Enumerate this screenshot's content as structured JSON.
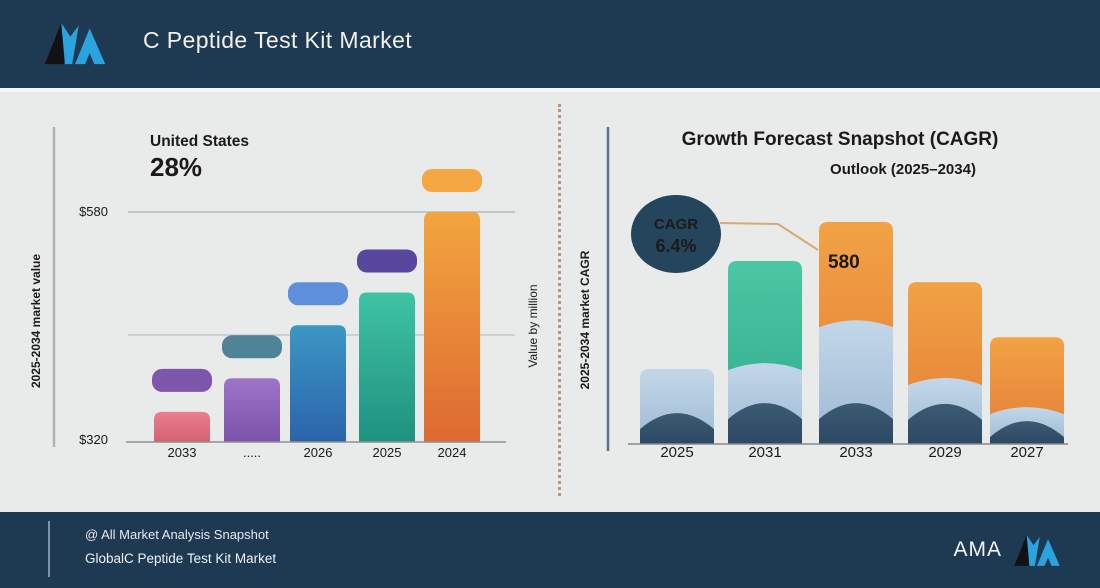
{
  "header": {
    "title": "C Peptide Test Kit Market",
    "logo": "AMA"
  },
  "footer": {
    "line1": "@ All Market Analysis Snapshot",
    "line2": "GlobalC Peptide Test Kit Market",
    "brand": "AMA"
  },
  "colors": {
    "header_bg": "#1d3a52",
    "panel_bg": "#e9eaea",
    "accent_red": "#bf1e2c",
    "divider_dotted": "#b5846c",
    "bubble_fill": "#24455c",
    "connector": "#d7a87a",
    "logo_blue": "#2aa3de",
    "logo_black": "#101215"
  },
  "chart_data": [
    {
      "id": "us-market",
      "type": "bar",
      "title": "United States",
      "highlight": "28%",
      "ylabel": "2025-2034 market value",
      "ylabel_right": "Value by million",
      "yticks": [
        "$580",
        "$320"
      ],
      "ylim": [
        320,
        580
      ],
      "grid": "horizontal",
      "categories": [
        "2033",
        ".....",
        "2026",
        "2025",
        "2024"
      ],
      "values": [
        354,
        392,
        452,
        489,
        580
      ],
      "bars": [
        {
          "category": "2033",
          "value": 354,
          "bar_colors": [
            "#e8808f",
            "#d6606f"
          ],
          "cap_color": "#7e57ad"
        },
        {
          "category": ".....",
          "value": 392,
          "bar_colors": [
            "#9d74c8",
            "#7c53aa"
          ],
          "cap_color": "#4e8398"
        },
        {
          "category": "2026",
          "value": 452,
          "bar_colors": [
            "#3b97c4",
            "#2b63ab"
          ],
          "cap_color": "#5d8fda"
        },
        {
          "category": "2025",
          "value": 489,
          "bar_colors": [
            "#3fc3a4",
            "#1f9180"
          ],
          "cap_color": "#57489d"
        },
        {
          "category": "2024",
          "value": 580,
          "bar_colors": [
            "#f3a53f",
            "#dd6a31"
          ],
          "cap_color": "#f4a742"
        }
      ]
    },
    {
      "id": "growth-forecast",
      "type": "stacked-bar",
      "title": "Growth Forecast Snapshot (CAGR)",
      "subtitle": "Outlook (2025–2034)",
      "badge": {
        "label": "CAGR",
        "value": "6.4%"
      },
      "annotation": "580",
      "ylabel": "2025-2034 market CAGR",
      "categories": [
        "2025",
        "2031",
        "2033",
        "2029",
        "2027"
      ],
      "totals": [
        196,
        478,
        580,
        423,
        279
      ],
      "series_colors": {
        "base": [
          "#3d5a73",
          "#2b4962"
        ],
        "mid": [
          "#c3d7e8",
          "#9db9d4"
        ],
        "top_teal": [
          "#4cc7a3",
          "#2fa98e"
        ],
        "top_orange": [
          "#f2a245",
          "#e47d37"
        ]
      },
      "bars": [
        {
          "category": "2025",
          "total": 196,
          "segments": [
            {
              "name": "base",
              "value": 86
            },
            {
              "name": "mid",
              "value": 110
            }
          ]
        },
        {
          "category": "2031",
          "total": 478,
          "segments": [
            {
              "name": "base",
              "value": 112
            },
            {
              "name": "mid",
              "value": 102
            },
            {
              "name": "top_teal",
              "value": 264
            }
          ]
        },
        {
          "category": "2033",
          "total": 580,
          "label": "580",
          "segments": [
            {
              "name": "base",
              "value": 112
            },
            {
              "name": "mid",
              "value": 214
            },
            {
              "name": "top_orange",
              "value": 254
            }
          ]
        },
        {
          "category": "2029",
          "total": 423,
          "segments": [
            {
              "name": "base",
              "value": 110
            },
            {
              "name": "mid",
              "value": 65
            },
            {
              "name": "top_orange",
              "value": 248
            }
          ]
        },
        {
          "category": "2027",
          "total": 279,
          "segments": [
            {
              "name": "base",
              "value": 65
            },
            {
              "name": "mid",
              "value": 34
            },
            {
              "name": "top_orange",
              "value": 180
            }
          ]
        }
      ]
    }
  ]
}
